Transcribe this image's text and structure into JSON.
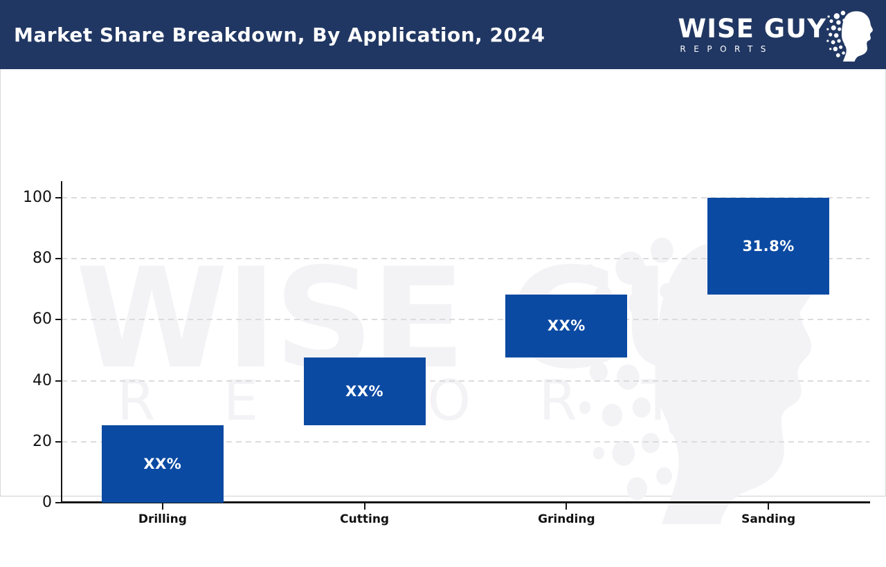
{
  "header": {
    "title": "Market Share Breakdown, By Application, 2024",
    "logo": {
      "wordmark": "WISE GUY",
      "sub": "REPORTS"
    }
  },
  "watermark": {
    "line1": "WISE GUY",
    "line2": "REPORTS"
  },
  "colors": {
    "header_bg": "#213763",
    "bar": "#0b4aa2",
    "title_text": "#ffffff",
    "gridline": "#dbdbdb",
    "axis": "#141414",
    "watermark": "#f3f3f6",
    "bar_label_text": "#ffffff"
  },
  "chart_data": {
    "type": "bar",
    "variant": "waterfall-floating-bars",
    "title": "Market Share Breakdown, By Application, 2024",
    "categories": [
      "Drilling",
      "Cutting",
      "Grinding",
      "Sanding"
    ],
    "segments": [
      {
        "category": "Drilling",
        "start": 0,
        "end": 25.4,
        "value": 25.4,
        "label": "XX%"
      },
      {
        "category": "Cutting",
        "start": 25.4,
        "end": 47.7,
        "value": 22.3,
        "label": "XX%"
      },
      {
        "category": "Grinding",
        "start": 47.7,
        "end": 68.2,
        "value": 20.5,
        "label": "XX%"
      },
      {
        "category": "Sanding",
        "start": 68.2,
        "end": 100,
        "value": 31.8,
        "label": "31.8%"
      }
    ],
    "yticks": [
      0,
      20,
      40,
      60,
      80,
      100
    ],
    "ylim": [
      0,
      107
    ],
    "xlabel": "",
    "ylabel": "",
    "grid": "horizontal-dashed",
    "legend": "none"
  }
}
